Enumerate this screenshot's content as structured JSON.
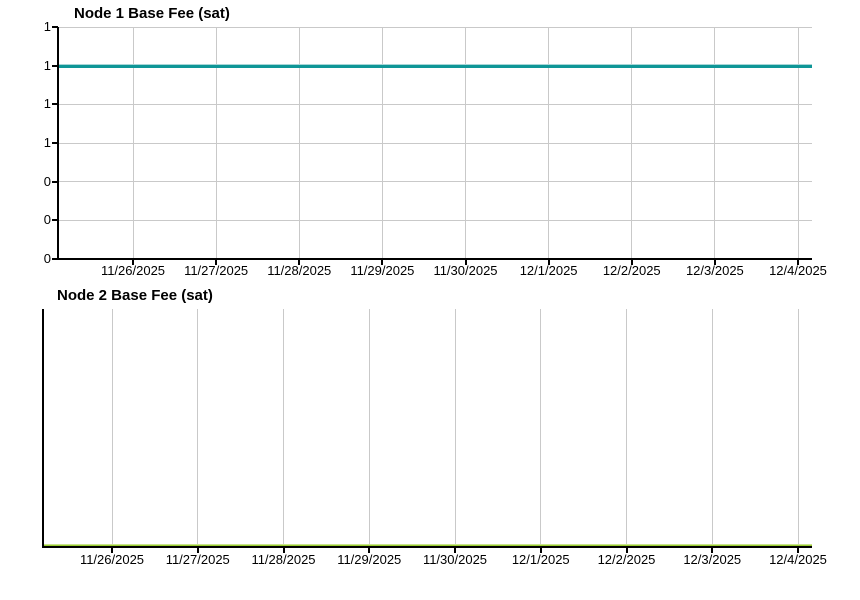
{
  "page": {
    "background": "#ffffff",
    "text_color": "#000000",
    "gridline_color": "#c9c9c9",
    "axis_color": "#000000"
  },
  "chart_data": [
    {
      "type": "line",
      "title": "Node 1 Base Fee (sat)",
      "x": [
        "11/26/2025",
        "11/27/2025",
        "11/28/2025",
        "11/29/2025",
        "11/30/2025",
        "12/1/2025",
        "12/2/2025",
        "12/3/2025",
        "12/4/2025"
      ],
      "series": [
        {
          "name": "Node 1 Base Fee",
          "values": [
            1,
            1,
            1,
            1,
            1,
            1,
            1,
            1,
            1
          ]
        }
      ],
      "ylim": [
        0,
        1.2
      ],
      "y_tick_labels": [
        "1",
        "1",
        "1",
        "1",
        "0",
        "0",
        "0"
      ],
      "y_ticks_implied": [
        1.2,
        1.0,
        0.8,
        0.6,
        0.4,
        0.2,
        0
      ],
      "xlabel": "",
      "ylabel": "",
      "legend": "none",
      "grid": "horizontal-and-vertical",
      "line_color": "#0e9697",
      "line_color_light": "#a7d6d7",
      "note": "constant flat line at value 1 across the whole date range"
    },
    {
      "type": "line",
      "title": "Node 2 Base Fee (sat)",
      "x": [
        "11/26/2025",
        "11/27/2025",
        "11/28/2025",
        "11/29/2025",
        "11/30/2025",
        "12/1/2025",
        "12/2/2025",
        "12/3/2025",
        "12/4/2025"
      ],
      "series": [
        {
          "name": "Node 2 Base Fee",
          "values": [
            1,
            1,
            1,
            1,
            1,
            1,
            1,
            1,
            1
          ]
        }
      ],
      "y_tick_labels": [],
      "xlabel": "",
      "ylabel": "",
      "legend": "none",
      "grid": "vertical-only",
      "line_color": "#9acd32",
      "line_color_light": "#c8e38c",
      "note": "constant flat line drawn along the bottom edge of the plot; y-axis shows no tick labels"
    }
  ]
}
